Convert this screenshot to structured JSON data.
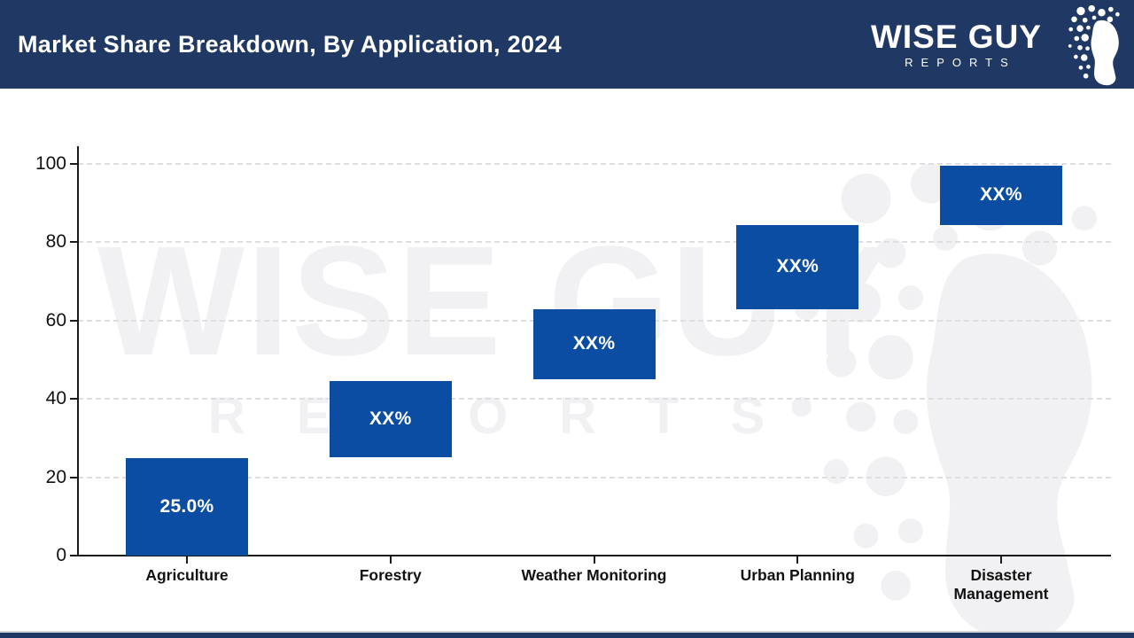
{
  "header": {
    "title": "Market Share Breakdown, By Application, 2024",
    "logo_line1": "WISE GUY",
    "logo_line2": "REPORTS"
  },
  "watermark": {
    "line1": "WISE GUY",
    "line2": "REPORTS"
  },
  "colors": {
    "header_bg": "#1f3864",
    "bar": "#0b4da2",
    "bar_label": "#ffffff",
    "gridline": "#dedede",
    "axis": "#1a1a1a",
    "watermark": "#f1f1f4"
  },
  "chart_data": {
    "type": "bar",
    "subtype": "waterfall",
    "title": "Market Share Breakdown, By Application, 2024",
    "categories": [
      "Agriculture",
      "Forestry",
      "Weather Monitoring",
      "Urban Planning",
      "Disaster\nManagement"
    ],
    "segments": [
      {
        "category": "Agriculture",
        "start": 0,
        "end": 25,
        "label": "25.0%"
      },
      {
        "category": "Forestry",
        "start": 25,
        "end": 44.5,
        "label": "XX%"
      },
      {
        "category": "Weather Monitoring",
        "start": 45,
        "end": 63,
        "label": "XX%"
      },
      {
        "category": "Urban Planning",
        "start": 63,
        "end": 84.5,
        "label": "XX%"
      },
      {
        "category": "Disaster Management",
        "start": 84.5,
        "end": 99.5,
        "label": "XX%"
      }
    ],
    "ylim": [
      0,
      100
    ],
    "yticks": [
      0,
      20,
      40,
      60,
      80,
      100
    ],
    "xlabel": "",
    "ylabel": "",
    "grid": "horizontal-dashed",
    "legend": "none",
    "bar_value_labels_inside": true
  }
}
